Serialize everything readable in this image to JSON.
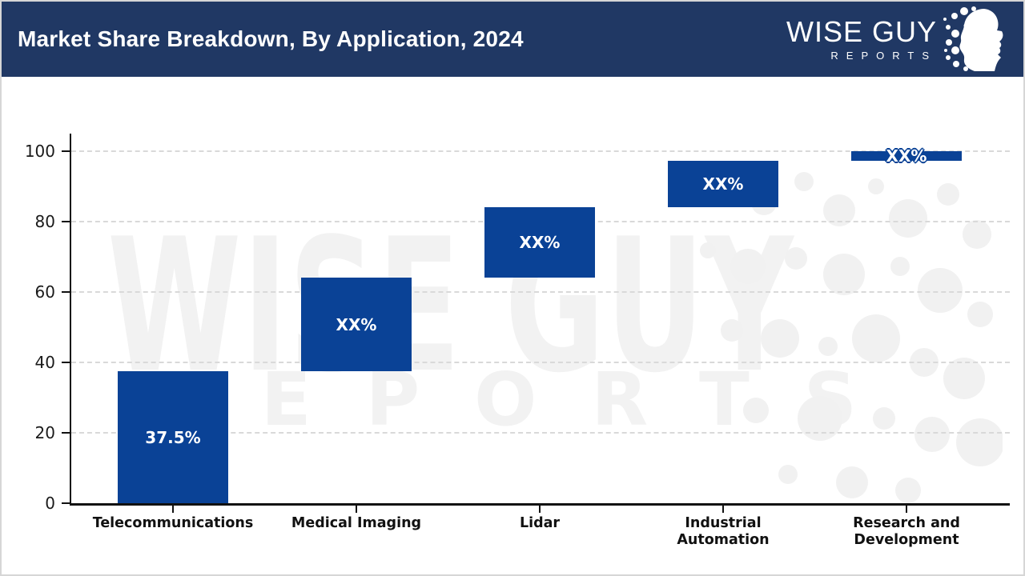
{
  "header": {
    "title": "Market Share Breakdown, By Application, 2024",
    "logo": {
      "line1": "WISE GUY",
      "line2": "REPORTS"
    }
  },
  "watermark": {
    "line1": "WISE GUY",
    "line2": "REPORTS"
  },
  "colors": {
    "header_bg": "#203864",
    "bar": "#0a4296",
    "axis": "#111111",
    "grid": "#d9d9d9",
    "watermark": "#f2f2f2",
    "border": "#d6d6d6",
    "bar_label": "#ffffff"
  },
  "chart_data": {
    "type": "bar",
    "variant": "waterfall",
    "title": "Market Share Breakdown, By Application, 2024",
    "categories": [
      "Telecommunications",
      "Medical Imaging",
      "Lidar",
      "Industrial\nAutomation",
      "Research and\nDevelopment"
    ],
    "bars": [
      {
        "category": "Telecommunications",
        "label": "37.5%",
        "start": 0,
        "end": 37.5,
        "outlined": false
      },
      {
        "category": "Medical Imaging",
        "label": "XX%",
        "start": 37.5,
        "end": 64,
        "outlined": false
      },
      {
        "category": "Lidar",
        "label": "XX%",
        "start": 64,
        "end": 84,
        "outlined": false
      },
      {
        "category": "Industrial Automation",
        "label": "XX%",
        "start": 84,
        "end": 97.3,
        "outlined": false
      },
      {
        "category": "Research and Development",
        "label": "XX%",
        "start": 97.3,
        "end": 100,
        "outlined": true
      }
    ],
    "ylim": [
      0,
      100
    ],
    "yticks": [
      0,
      20,
      40,
      60,
      80,
      100
    ],
    "grid": "horizontal-dashed",
    "legend": "none"
  }
}
